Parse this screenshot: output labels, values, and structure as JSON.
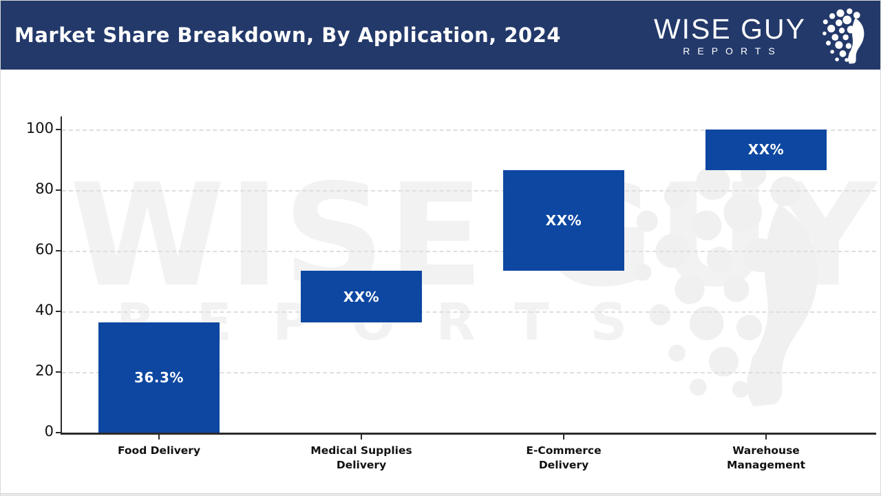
{
  "header": {
    "title": "Market Share Breakdown, By Application, 2024",
    "logo": {
      "wordmark": "WISE GUY",
      "subtext": "REPORTS"
    }
  },
  "watermark": {
    "line1": "WISE GUY",
    "line2": "REPORTS"
  },
  "colors": {
    "header_bg": "#23396a",
    "bar": "#0d47a1",
    "bar_label": "#ffffff",
    "grid": "#dedede",
    "axis": "#2a2a2a",
    "watermark": "#f2f2f3"
  },
  "chart_data": {
    "type": "bar",
    "variant": "waterfall-stacked",
    "title": "Market Share Breakdown, By Application, 2024",
    "xlabel": "",
    "ylabel": "",
    "ylim": [
      0,
      100
    ],
    "yticks": [
      0,
      20,
      40,
      60,
      80,
      100
    ],
    "grid": "horizontal-dashed",
    "legend": false,
    "categories": [
      {
        "label": "Food Delivery",
        "lines": [
          "Food Delivery"
        ]
      },
      {
        "label": "Medical Supplies Delivery",
        "lines": [
          "Medical Supplies",
          "Delivery"
        ]
      },
      {
        "label": "E-Commerce Delivery",
        "lines": [
          "E-Commerce",
          "Delivery"
        ]
      },
      {
        "label": "Warehouse Management",
        "lines": [
          "Warehouse",
          "Management"
        ]
      }
    ],
    "segments": [
      {
        "category": "Food Delivery",
        "start": 0,
        "end": 36.3,
        "label": "36.3%"
      },
      {
        "category": "Medical Supplies Delivery",
        "start": 36.3,
        "end": 53.4,
        "label": "XX%"
      },
      {
        "category": "E-Commerce Delivery",
        "start": 53.4,
        "end": 86.6,
        "label": "XX%"
      },
      {
        "category": "Warehouse Management",
        "start": 86.6,
        "end": 100,
        "label": "XX%"
      }
    ]
  }
}
